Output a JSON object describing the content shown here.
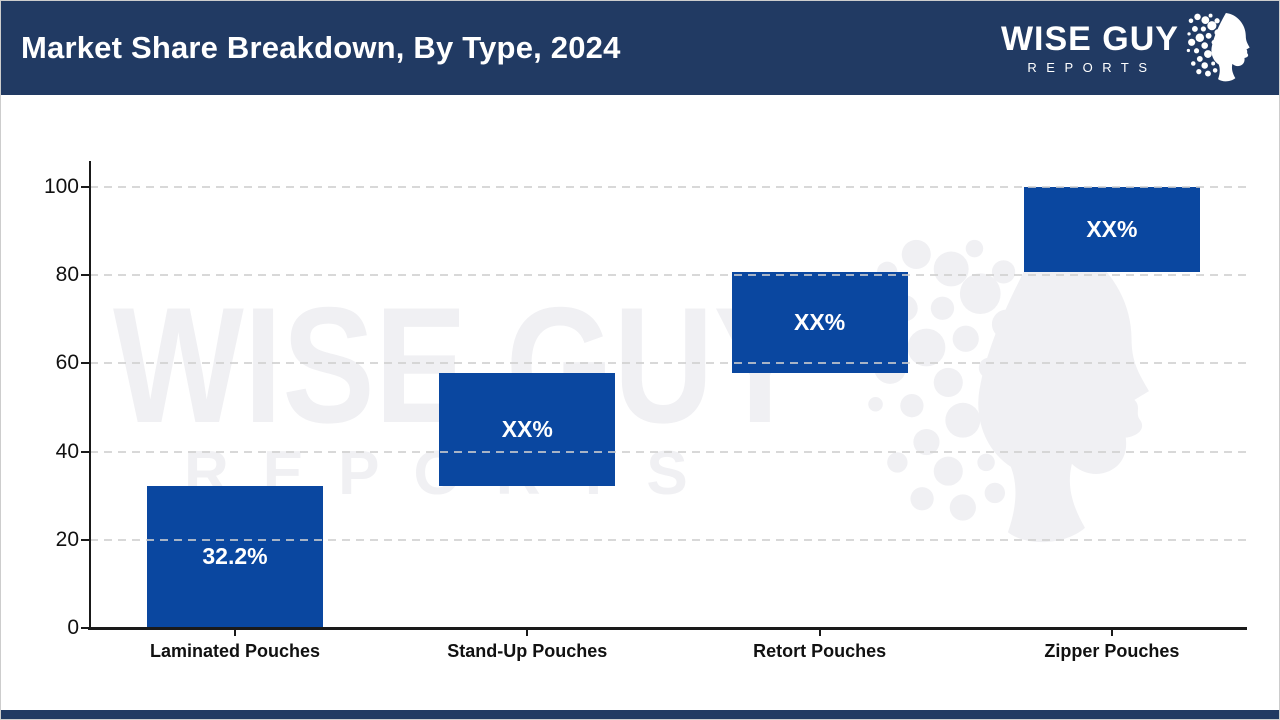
{
  "header": {
    "title": "Market Share Breakdown, By Type, 2024",
    "logo": {
      "line1": "WISE GUY",
      "line2": "REPORTS"
    }
  },
  "watermark": {
    "line1": "WISE GUY",
    "line2": "REPORTS"
  },
  "chart_data": {
    "type": "bar",
    "subtype": "waterfall-floating-bars",
    "title": "Market Share Breakdown, By Type, 2024",
    "categories": [
      "Laminated Pouches",
      "Stand-Up Pouches",
      "Retort Pouches",
      "Zipper Pouches"
    ],
    "bars": [
      {
        "category": "Laminated Pouches",
        "start": 0,
        "end": 32.2,
        "value": 32.2,
        "label": "32.2%"
      },
      {
        "category": "Stand-Up Pouches",
        "start": 32.2,
        "end": 57.8,
        "value": 25.6,
        "label": "XX%"
      },
      {
        "category": "Retort Pouches",
        "start": 57.8,
        "end": 80.8,
        "value": 23.0,
        "label": "XX%"
      },
      {
        "category": "Zipper Pouches",
        "start": 80.8,
        "end": 100,
        "value": 19.2,
        "label": "XX%"
      }
    ],
    "ylim": [
      0,
      100
    ],
    "yticks": [
      0,
      20,
      40,
      60,
      80,
      100
    ],
    "xlabel": "",
    "ylabel": "",
    "grid": "horizontal-dashed-over-bars",
    "legend": "none"
  },
  "colors": {
    "header_bg": "#213a63",
    "footer_bg": "#213a63",
    "bar": "#0a47a0",
    "bar_label": "#ffffff",
    "grid": "#cfcfcf",
    "axis": "#1a1a1a",
    "watermark": "#f0f0f3"
  }
}
